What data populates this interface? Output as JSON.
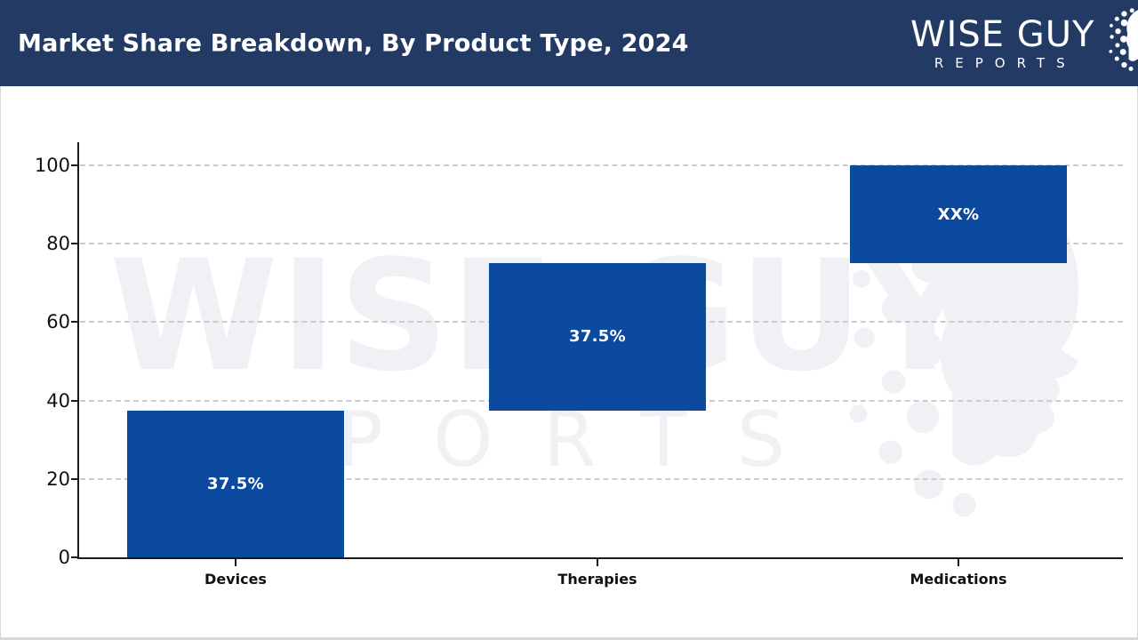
{
  "header": {
    "title": "Market Share Breakdown, By Product Type, 2024",
    "bg_color": "#233A64"
  },
  "logo": {
    "wordmark": "WISE GUY",
    "subtitle": "REPORTS"
  },
  "watermark": {
    "wordmark": "WISE GUY",
    "subtitle": "REPORTS"
  },
  "chart_data": {
    "type": "bar",
    "subtype": "floating-range-bars",
    "title": "Market Share Breakdown, By Product Type, 2024",
    "categories": [
      "Devices",
      "Therapies",
      "Medications"
    ],
    "bars": [
      {
        "category": "Devices",
        "start": 0,
        "end": 37.5,
        "label": "37.5%"
      },
      {
        "category": "Therapies",
        "start": 37.5,
        "end": 75,
        "label": "37.5%"
      },
      {
        "category": "Medications",
        "start": 75,
        "end": 100,
        "label": "XX%"
      }
    ],
    "yticks": [
      0,
      20,
      40,
      60,
      80,
      100
    ],
    "ylim": [
      0,
      106
    ],
    "xlabel": "",
    "ylabel": "",
    "grid": "horizontal dashed, at ticks 20-100",
    "legend": "none",
    "bar_color": "#0B4A9F",
    "bar_label_color": "#FFFFFF"
  },
  "colors": {
    "header_bg": "#233A64",
    "bar": "#0B4A9F",
    "gridline": "#CCCCCC",
    "axis": "#1A1A1A",
    "watermark": "#F0F1F4",
    "frame_border": "#D8D8D8"
  }
}
